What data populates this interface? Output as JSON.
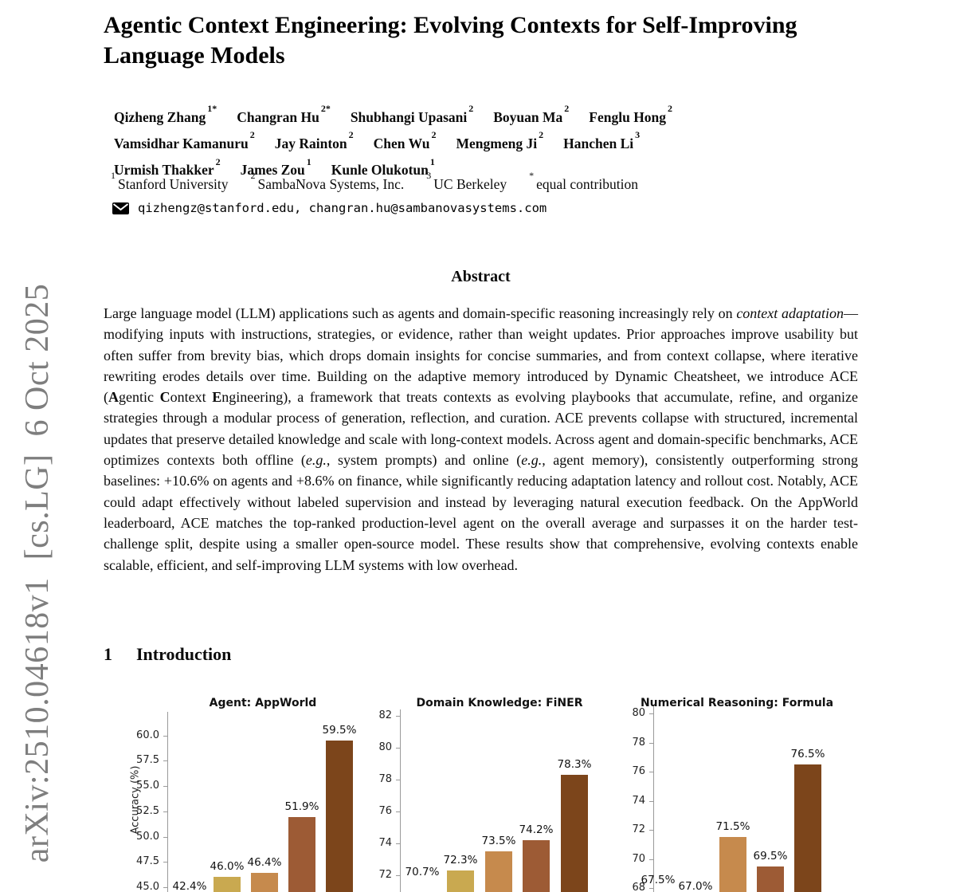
{
  "paper": {
    "arxiv_watermark": "arXiv:2510.04618v1  [cs.LG]  6 Oct 2025",
    "title": "Agentic Context Engineering: Evolving Contexts for Self-Improving Language Models",
    "authors": [
      {
        "name": "Qizheng Zhang",
        "sup": "1*"
      },
      {
        "name": "Changran Hu",
        "sup": "2*"
      },
      {
        "name": "Shubhangi Upasani",
        "sup": "2"
      },
      {
        "name": "Boyuan Ma",
        "sup": "2"
      },
      {
        "name": "Fenglu Hong",
        "sup": "2"
      },
      {
        "name": "Vamsidhar Kamanuru",
        "sup": "2"
      },
      {
        "name": "Jay Rainton",
        "sup": "2"
      },
      {
        "name": "Chen Wu",
        "sup": "2"
      },
      {
        "name": "Mengmeng Ji",
        "sup": "2"
      },
      {
        "name": "Hanchen Li",
        "sup": "3"
      },
      {
        "name": "Urmish Thakker",
        "sup": "2"
      },
      {
        "name": "James Zou",
        "sup": "1"
      },
      {
        "name": "Kunle Olukotun",
        "sup": "1"
      }
    ],
    "affiliations": [
      {
        "sup": "1",
        "name": "Stanford University"
      },
      {
        "sup": "2",
        "name": "SambaNova Systems, Inc."
      },
      {
        "sup": "3",
        "name": "UC Berkeley"
      },
      {
        "sup": "*",
        "name": "equal contribution"
      }
    ],
    "emails": "qizhengz@stanford.edu, changran.hu@sambanovasystems.com",
    "abstract_heading": "Abstract",
    "abstract_html": "Large language model (LLM) applications such as agents and domain-specific reasoning increasingly rely on <i>context adaptation</i>—modifying inputs with instructions, strategies, or evidence, rather than weight updates. Prior approaches improve usability but often suffer from brevity bias, which drops domain insights for concise summaries, and from context collapse, where iterative rewriting erodes details over time. Building on the adaptive memory introduced by Dynamic Cheatsheet, we introduce ACE (<b>A</b>gentic <b>C</b>ontext <b>E</b>ngineering), a framework that treats contexts as evolving playbooks that accumulate, refine, and organize strategies through a modular process of generation, reflection, and curation. ACE prevents collapse with structured, incremental updates that preserve detailed knowledge and scale with long-context models. Across agent and domain-specific benchmarks, ACE optimizes contexts both offline (<i>e.g.</i>, system prompts) and online (<i>e.g.</i>, agent memory), consistently outperforming strong baselines: +10.6% on agents and +8.6% on finance, while significantly reducing adaptation latency and rollout cost. Notably, ACE could adapt effectively without labeled supervision and instead by leveraging natural execution feedback. On the AppWorld leaderboard, ACE matches the top-ranked production-level agent on the overall average and surpasses it on the harder test-challenge split, despite using a smaller open-source model. These results show that comprehensive, evolving contexts enable scalable, efficient, and self-improving LLM systems with low overhead.",
    "section": {
      "number": "1",
      "title": "Introduction"
    }
  },
  "chart_data": [
    {
      "type": "bar",
      "title": "Agent: AppWorld",
      "ylabel": "Accuracy (%)",
      "values": [
        42.4,
        46.0,
        46.4,
        51.9,
        59.5
      ],
      "bar_labels": [
        "42.4%",
        "46.0%",
        "46.4%",
        "51.9%",
        "59.5%"
      ],
      "yticks": [
        45.0,
        47.5,
        50.0,
        52.5,
        55.0,
        57.5,
        60.0
      ],
      "ytick_labels": [
        "45.0",
        "47.5",
        "50.0",
        "52.5",
        "55.0",
        "57.5",
        "60.0"
      ],
      "ylim_visible": [
        45.0,
        61.5
      ],
      "grid": false,
      "legend": null,
      "colors": [
        "#d8bc60",
        "#c9a950",
        "#c68a4d",
        "#9d5b35",
        "#7c451b"
      ]
    },
    {
      "type": "bar",
      "title": "Domain Knowledge: FiNER",
      "ylabel": "",
      "values": [
        70.7,
        72.3,
        73.5,
        74.2,
        78.3
      ],
      "bar_labels": [
        "70.7%",
        "72.3%",
        "73.5%",
        "74.2%",
        "78.3%"
      ],
      "yticks": [
        72,
        74,
        76,
        78,
        80,
        82
      ],
      "ytick_labels": [
        "72",
        "74",
        "76",
        "78",
        "80",
        "82"
      ],
      "ylim_visible": [
        71.0,
        82.0
      ],
      "grid": false,
      "legend": null,
      "colors": [
        "#d8bc60",
        "#c9a950",
        "#c68a4d",
        "#9d5b35",
        "#7c451b"
      ]
    },
    {
      "type": "bar",
      "title": "Numerical Reasoning: Formula",
      "ylabel": "",
      "values": [
        67.5,
        67.0,
        71.5,
        69.5,
        76.5
      ],
      "bar_labels": [
        "67.5%",
        "67.0%",
        "71.5%",
        "69.5%",
        "76.5%"
      ],
      "yticks": [
        68,
        70,
        72,
        74,
        76,
        78,
        80
      ],
      "ytick_labels": [
        "68",
        "70",
        "72",
        "74",
        "76",
        "78",
        "80"
      ],
      "ylim_visible": [
        67.0,
        80.0
      ],
      "grid": false,
      "legend": null,
      "colors": [
        "#d8bc60",
        "#c9a950",
        "#c68a4d",
        "#9d5b35",
        "#7c451b"
      ]
    }
  ]
}
